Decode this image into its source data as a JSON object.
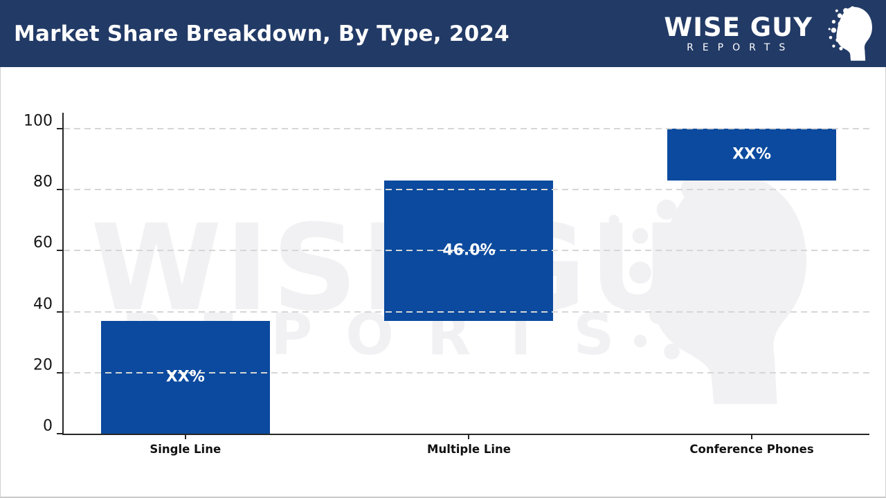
{
  "header": {
    "title": "Market Share Breakdown, By Type, 2024",
    "logo": {
      "brand_line1": "WISE GUY",
      "brand_line2": "REPORTS",
      "face_icon": "head-profile-dots-icon"
    }
  },
  "watermark": {
    "line1": "WISE GUY",
    "line2": "REPORTS",
    "face_icon": "head-profile-dots-icon"
  },
  "colors": {
    "header_bg": "#223A66",
    "bar": "#0B4A9E",
    "bar_label": "#ffffff",
    "grid": "#d6d6d6",
    "axis": "#262626",
    "watermark": "#f1f1f3"
  },
  "chart_data": {
    "type": "bar",
    "variant": "waterfall",
    "title": "Market Share Breakdown, By Type, 2024",
    "categories": [
      "Single Line",
      "Multiple Line",
      "Conference Phones"
    ],
    "segments": [
      {
        "category": "Single Line",
        "start": 0,
        "end": 37,
        "label": "XX%"
      },
      {
        "category": "Multiple Line",
        "start": 37,
        "end": 83,
        "label": "46.0%"
      },
      {
        "category": "Conference Phones",
        "start": 83,
        "end": 100,
        "label": "XX%"
      }
    ],
    "values_displayed": [
      "XX%",
      "46.0%",
      "XX%"
    ],
    "known_value": {
      "category": "Multiple Line",
      "value": 46.0,
      "unit": "%"
    },
    "xlabel": "",
    "ylabel": "",
    "ylim": [
      0,
      100
    ],
    "yticks": [
      0,
      20,
      40,
      60,
      80,
      100
    ],
    "grid": {
      "axis": "y",
      "style": "dashed"
    },
    "legend": "none"
  }
}
